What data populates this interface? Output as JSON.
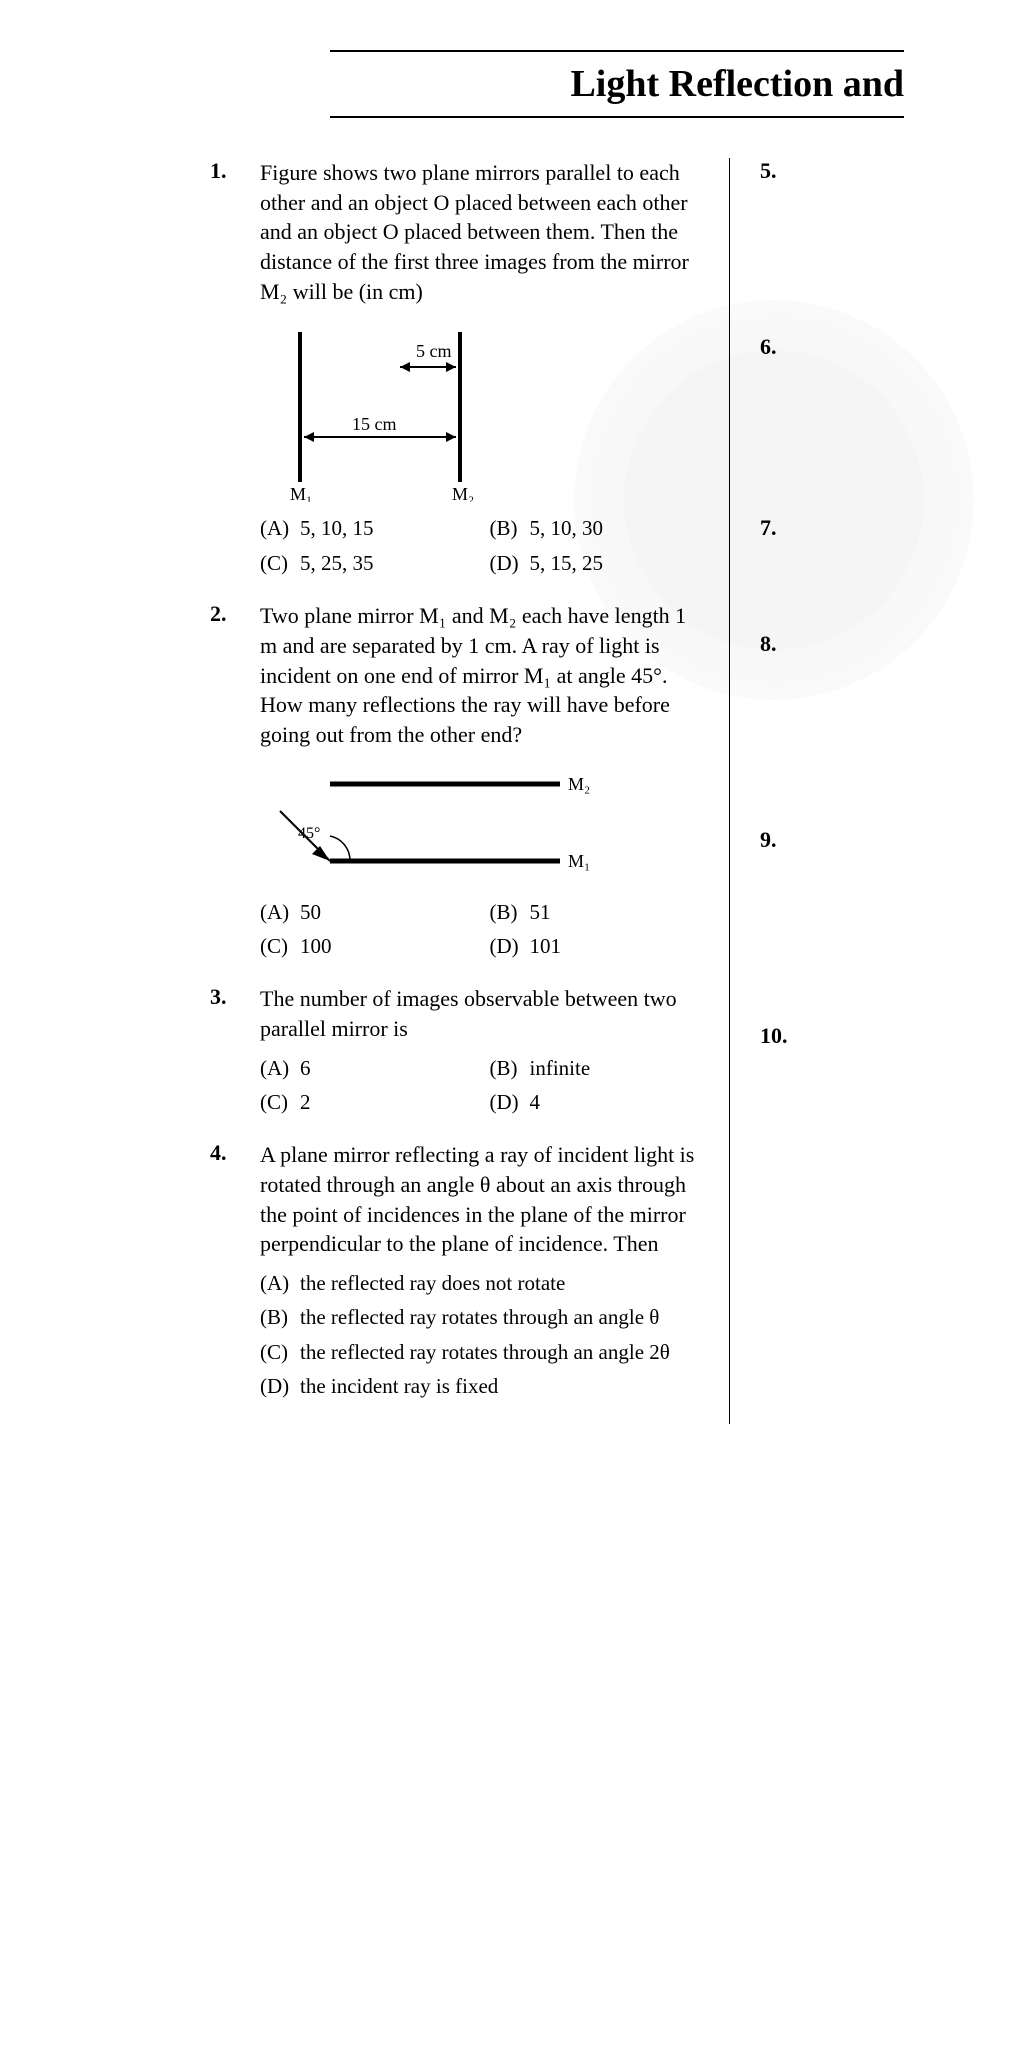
{
  "chapter_title": "Light Reflection and",
  "questions": [
    {
      "num": "1.",
      "text": "Figure shows two plane mirrors parallel to each other and an object O placed between each other and an object O placed between them. Then the distance of the first three images from the mirror M₂ will be (in cm)",
      "figure": "mirrors",
      "fig_labels": {
        "top": "5 cm",
        "mid": "15 cm",
        "m1": "M₁",
        "m2": "M₂"
      },
      "options": [
        {
          "label": "(A)",
          "text": "5, 10, 15"
        },
        {
          "label": "(B)",
          "text": "5, 10, 30"
        },
        {
          "label": "(C)",
          "text": "5, 25, 35"
        },
        {
          "label": "(D)",
          "text": "5, 15, 25"
        }
      ]
    },
    {
      "num": "2.",
      "text": "Two plane mirror M₁ and M₂ each have length 1 m and are separated by 1 cm. A ray of light is incident on one end of mirror M₁ at angle 45°. How many reflections the ray will have before going out from the other end?",
      "figure": "ray",
      "fig_labels": {
        "angle": "45°",
        "m1": "M₁",
        "m2": "M₂"
      },
      "options": [
        {
          "label": "(A)",
          "text": "50"
        },
        {
          "label": "(B)",
          "text": "51"
        },
        {
          "label": "(C)",
          "text": "100"
        },
        {
          "label": "(D)",
          "text": "101"
        }
      ]
    },
    {
      "num": "3.",
      "text": "The number of images observable between two parallel mirror is",
      "options": [
        {
          "label": "(A)",
          "text": "6"
        },
        {
          "label": "(B)",
          "text": "infinite"
        },
        {
          "label": "(C)",
          "text": "2"
        },
        {
          "label": "(D)",
          "text": "4"
        }
      ]
    },
    {
      "num": "4.",
      "text": "A plane mirror reflecting a ray of incident light is rotated through an angle θ about an axis through the point of incidences in the plane of the mirror perpendicular to the plane of incidence. Then",
      "options_full": [
        {
          "label": "(A)",
          "text": "the reflected ray does not rotate"
        },
        {
          "label": "(B)",
          "text": "the reflected ray rotates through an angle θ"
        },
        {
          "label": "(C)",
          "text": "the reflected ray rotates through an angle 2θ"
        },
        {
          "label": "(D)",
          "text": "the incident ray is fixed"
        }
      ]
    }
  ],
  "right_numbers": [
    "5.",
    "6.",
    "7.",
    "8.",
    "9.",
    "10."
  ],
  "right_spacings": [
    150,
    155,
    90,
    170,
    170,
    0
  ]
}
